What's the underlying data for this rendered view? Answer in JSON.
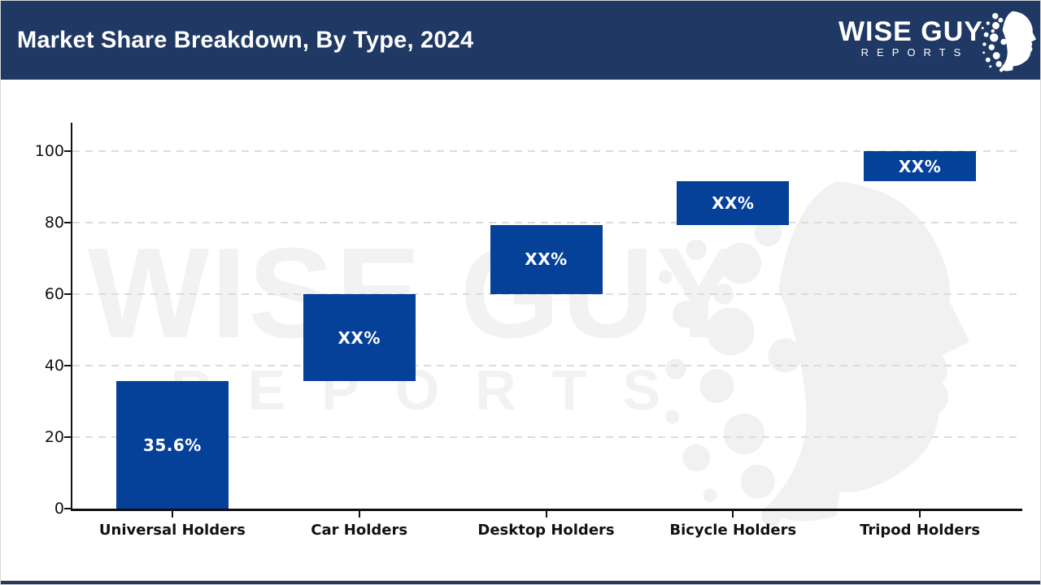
{
  "header": {
    "title": "Market Share Breakdown, By Type, 2024",
    "bg_color": "#1F3864",
    "logo": {
      "wordmark": "WISE GUY",
      "reports": "REPORTS"
    }
  },
  "watermark": {
    "wordmark": "WISE GUY",
    "reports": "REPORTS"
  },
  "chart_data": {
    "type": "bar",
    "subtype": "waterfall",
    "title": "Market Share Breakdown, By Type, 2024",
    "categories": [
      "Universal Holders",
      "Car Holders",
      "Desktop Holders",
      "Bicycle Holders",
      "Tripod Holders"
    ],
    "segments": [
      {
        "category": "Universal Holders",
        "start": 0,
        "end": 35.6,
        "label": "35.6%"
      },
      {
        "category": "Car Holders",
        "start": 35.6,
        "end": 60.0,
        "label": "XX%"
      },
      {
        "category": "Desktop Holders",
        "start": 60.0,
        "end": 79.4,
        "label": "XX%"
      },
      {
        "category": "Bicycle Holders",
        "start": 79.4,
        "end": 91.5,
        "label": "XX%"
      },
      {
        "category": "Tripod Holders",
        "start": 91.5,
        "end": 100.0,
        "label": "XX%"
      }
    ],
    "yticks": [
      0,
      20,
      40,
      60,
      80,
      100
    ],
    "ylim": [
      0,
      100
    ],
    "xlabel": "",
    "ylabel": "",
    "legend": "none",
    "grid": {
      "horizontal": true,
      "style": "dashed",
      "color": "#DCDCDC"
    },
    "bar_color": "#054099",
    "bar_label_color": "#FFFFFF",
    "axis_color": "#111111"
  }
}
